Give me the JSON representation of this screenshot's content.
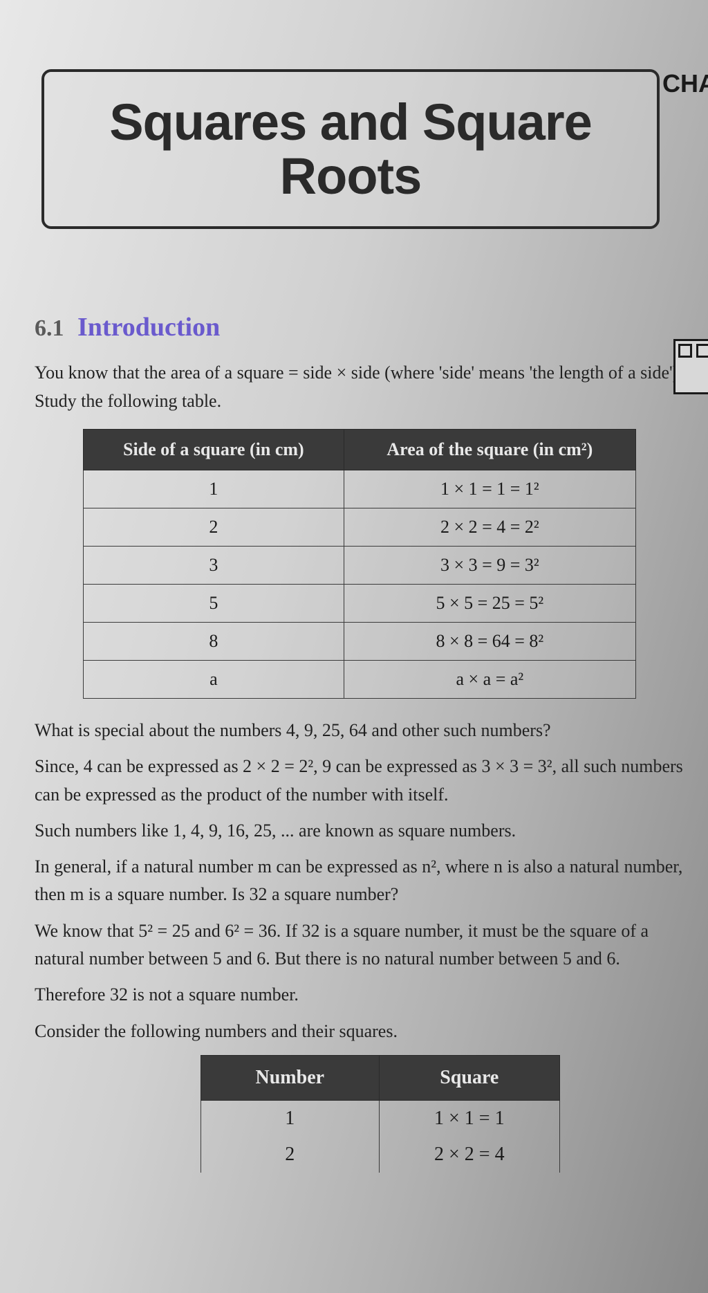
{
  "title": "Squares and Square Roots",
  "corner_badge": "CHA",
  "section": {
    "num": "6.1",
    "heading": "Introduction"
  },
  "intro_para": "You know that the area of a square = side × side (where 'side' means 'the length of a side'). Study the following table.",
  "table1": {
    "headers": [
      "Side of a square (in cm)",
      "Area of the square (in cm²)"
    ],
    "rows": [
      [
        "1",
        "1 × 1 = 1 = 1²"
      ],
      [
        "2",
        "2 × 2 = 4 = 2²"
      ],
      [
        "3",
        "3 × 3 = 9 = 3²"
      ],
      [
        "5",
        "5 × 5 = 25 = 5²"
      ],
      [
        "8",
        "8 × 8 = 64 = 8²"
      ],
      [
        "a",
        "a × a = a²"
      ]
    ]
  },
  "para2_q": "What is special about the numbers 4, 9, 25, 64 and other such numbers?",
  "para2_a": "Since, 4 can be expressed as 2 × 2 = 2², 9 can be expressed as 3 × 3 = 3², all such numbers can be expressed as the product of the number with itself.",
  "para3": "Such numbers like 1, 4, 9, 16, 25, ... are known as square numbers.",
  "para4": "In general, if a natural number m can be expressed as n², where n is also a natural number, then m is a square number. Is 32 a square number?",
  "para5": "We know that 5² = 25 and 6² = 36. If 32 is a square number, it must be the square of a natural number between 5 and 6. But there is no natural number between 5 and 6.",
  "para6": "Therefore 32 is not a square number.",
  "para7": "Consider the following numbers and their squares.",
  "table2": {
    "headers": [
      "Number",
      "Square"
    ],
    "rows": [
      [
        "1",
        "1 × 1 = 1"
      ],
      [
        "2",
        "2 × 2 = 4"
      ]
    ]
  },
  "colors": {
    "heading": "#6a5acd",
    "table_header_bg": "#3a3a3a",
    "table_header_fg": "#e8e8e8",
    "body_text": "#222222",
    "border": "#2a2a2a"
  },
  "fontsize": {
    "title": 74,
    "section_heading": 38,
    "body": 26,
    "table": 26
  }
}
